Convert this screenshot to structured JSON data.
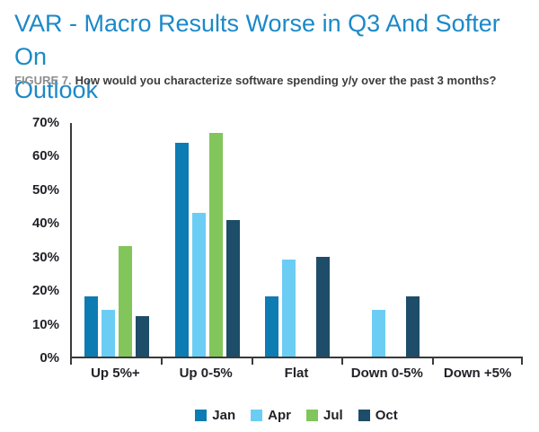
{
  "header": {
    "title_lines": [
      "VAR - Macro Results Worse in Q3 And Softer On",
      "Outlook"
    ],
    "figure_label": "FIGURE 7.",
    "figure_caption": "How would you characterize software spending y/y over the past 3 months?"
  },
  "colors": {
    "title": "#1b89c8",
    "figure_label": "#8e8e8e",
    "caption_text": "#3c3c3c",
    "axis_line": "#3a3a3a",
    "axis_text": "#222228"
  },
  "chart_data": {
    "type": "bar",
    "title": "How would you characterize software spending y/y over the past 3 months?",
    "categories": [
      "Up 5%+",
      "Up 0-5%",
      "Flat",
      "Down 0-5%",
      "Down +5%"
    ],
    "series": [
      {
        "name": "Jan",
        "color": "#0d7cb2",
        "values": [
          18,
          64,
          18,
          0,
          0
        ]
      },
      {
        "name": "Apr",
        "color": "#6ccdf4",
        "values": [
          14,
          43,
          29,
          14,
          0
        ]
      },
      {
        "name": "Jul",
        "color": "#82c55b",
        "values": [
          33,
          67,
          0,
          0,
          0
        ]
      },
      {
        "name": "Oct",
        "color": "#1d4d68",
        "values": [
          12,
          41,
          30,
          18,
          0
        ]
      }
    ],
    "ylim": [
      0,
      70
    ],
    "ytick_labels": [
      "0%",
      "10%",
      "20%",
      "30%",
      "40%",
      "50%",
      "60%",
      "70%"
    ],
    "xlabel": "",
    "ylabel": "",
    "grid": false,
    "legend_position": "bottom"
  }
}
